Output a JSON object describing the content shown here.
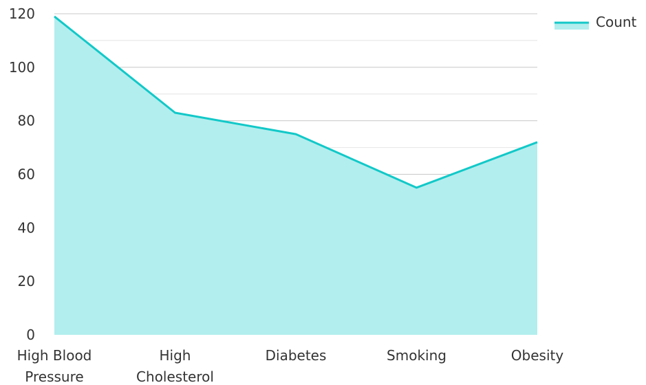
{
  "chart_data": {
    "type": "area",
    "categories": [
      "High Blood Pressure",
      "High Cholesterol",
      "Diabetes",
      "Smoking",
      "Obesity"
    ],
    "category_lines": [
      [
        "High Blood",
        "Pressure"
      ],
      [
        "High",
        "Cholesterol"
      ],
      [
        "Diabetes"
      ],
      [
        "Smoking"
      ],
      [
        "Obesity"
      ]
    ],
    "series": [
      {
        "name": "Count",
        "values": [
          119,
          83,
          75,
          55,
          72
        ]
      }
    ],
    "ylim": [
      0,
      120
    ],
    "y_ticks": [
      0,
      20,
      40,
      60,
      80,
      100,
      120
    ],
    "grid": true,
    "legend_position": "top-right",
    "colors": {
      "line": "#13c8c8",
      "fill": "#b2eeee",
      "grid_major": "#c8c8c8",
      "grid_minor": "#e4e4e4",
      "text": "#333333"
    }
  }
}
